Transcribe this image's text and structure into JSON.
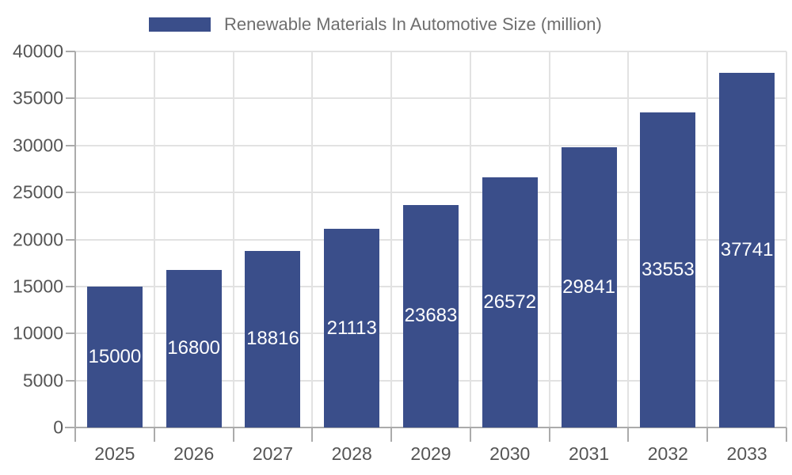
{
  "legend": {
    "label": "Renewable Materials In Automotive Size (million)"
  },
  "colors": {
    "bar": "#3A4E8A",
    "grid": "#e2e2e2",
    "axis": "#ababab",
    "tick_text": "#555555",
    "legend_text": "#6e6e6e",
    "value_text": "#ffffff",
    "background": "#ffffff"
  },
  "chart_data": {
    "type": "bar",
    "title": "Renewable Materials In Automotive Size (million)",
    "categories": [
      "2025",
      "2026",
      "2027",
      "2028",
      "2029",
      "2030",
      "2031",
      "2032",
      "2033"
    ],
    "values": [
      15000,
      16800,
      18816,
      21113,
      23683,
      26572,
      29841,
      33553,
      37741
    ],
    "xlabel": "",
    "ylabel": "",
    "ylim": [
      0,
      40000
    ],
    "yticks": [
      0,
      5000,
      10000,
      15000,
      20000,
      25000,
      30000,
      35000,
      40000
    ],
    "grid": true,
    "grid_vertical": true,
    "legend_position": "top",
    "value_label_position": "inside-center"
  }
}
